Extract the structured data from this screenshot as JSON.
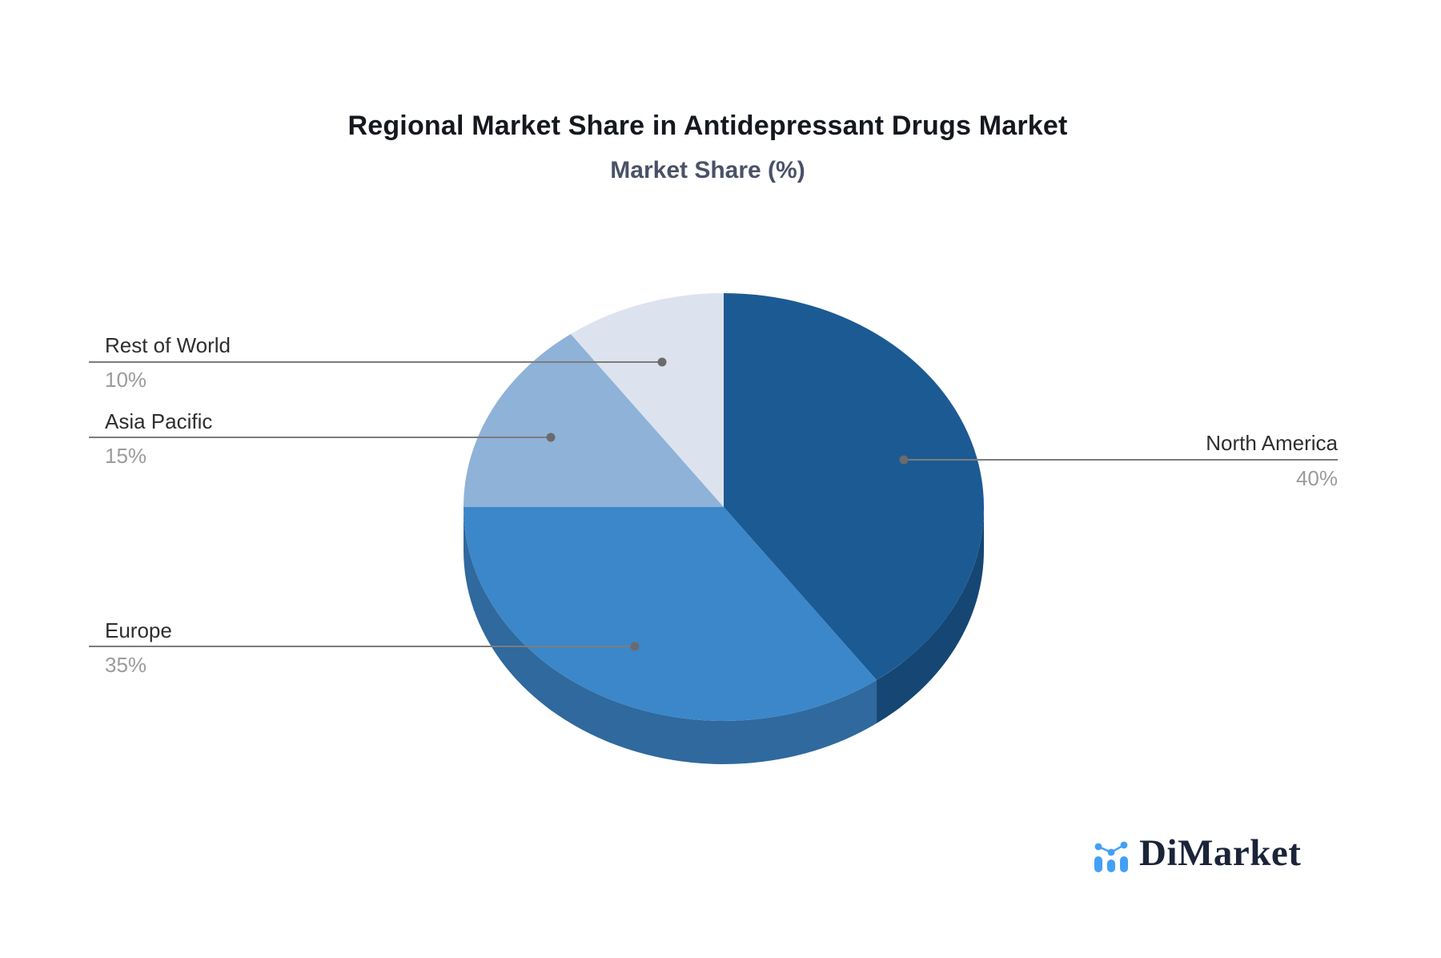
{
  "title": "Regional Market Share in Antidepressant Drugs Market",
  "subtitle": "Market Share (%)",
  "brand": {
    "name": "DiMarket"
  },
  "colors": {
    "bg": "#ffffff",
    "title-color": "#15181e",
    "subtitle-color": "#4a5267",
    "label-color": "#2e2e2e",
    "pct-color": "#9b9b9b",
    "connector-color": "#7c7c7c",
    "dot-color": "#6b6b6b",
    "brand-blue": "#42a0f5",
    "brand-navy": "#1b2438"
  },
  "chart_data": {
    "type": "pie",
    "style": "3d",
    "title": "Regional Market Share in Antidepressant Drugs Market",
    "subtitle": "Market Share (%)",
    "unit": "%",
    "direction": "clockwise",
    "start_angle_deg": 0,
    "legend_position": "callout-labels",
    "slices": [
      {
        "label": "North America",
        "value": 40,
        "pct_label": "40%",
        "color": "#1c5a94"
      },
      {
        "label": "Europe",
        "value": 35,
        "pct_label": "35%",
        "color": "#3c87c9"
      },
      {
        "label": "Asia Pacific",
        "value": 15,
        "pct_label": "15%",
        "color": "#8fb2d8"
      },
      {
        "label": "Rest of World",
        "value": 10,
        "pct_label": "10%",
        "color": "#dce3ee"
      }
    ]
  }
}
